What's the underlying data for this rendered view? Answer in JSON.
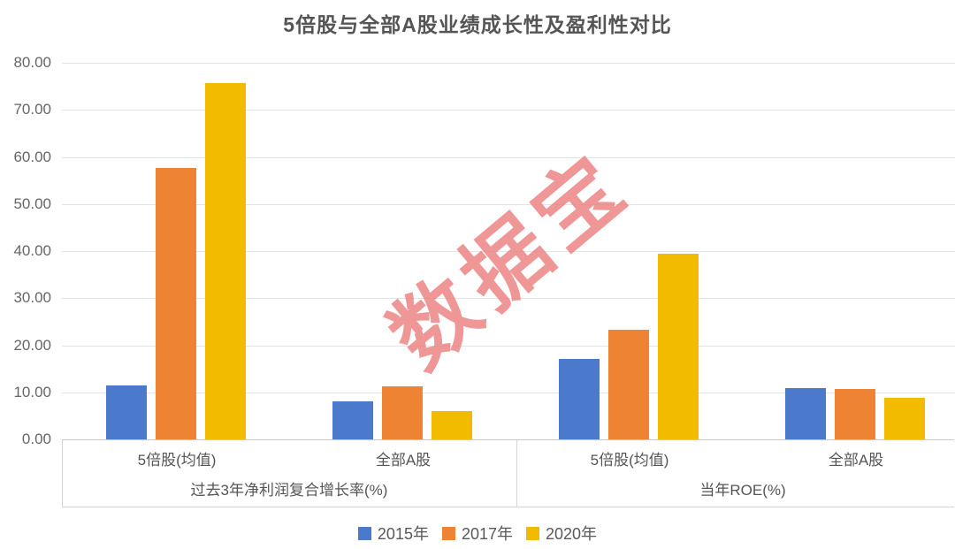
{
  "watermark": {
    "text": "数据宝",
    "color": "#ec7f7f"
  },
  "chart_data": {
    "type": "bar",
    "title": "5倍股与全部A股业绩成长性及盈利性对比",
    "categories": [
      "5倍股(均值)",
      "全部A股",
      "5倍股(均值)",
      "全部A股"
    ],
    "category_groups": [
      {
        "label": "过去3年净利润复合增长率(%)",
        "category_indexes": [
          0,
          1
        ]
      },
      {
        "label": "当年ROE(%)",
        "category_indexes": [
          2,
          3
        ]
      }
    ],
    "series": [
      {
        "name": "2015年",
        "color": "#4b7acd",
        "values": [
          11.5,
          8.1,
          17.1,
          10.9
        ]
      },
      {
        "name": "2017年",
        "color": "#ed8333",
        "values": [
          57.7,
          11.2,
          23.3,
          10.7
        ]
      },
      {
        "name": "2020年",
        "color": "#f2bb00",
        "values": [
          75.6,
          6.0,
          39.5,
          8.8
        ]
      }
    ],
    "ylim": [
      0,
      80
    ],
    "ytick_step": 10,
    "ytick_decimals": 2,
    "grid": true,
    "legend_position": "bottom"
  }
}
